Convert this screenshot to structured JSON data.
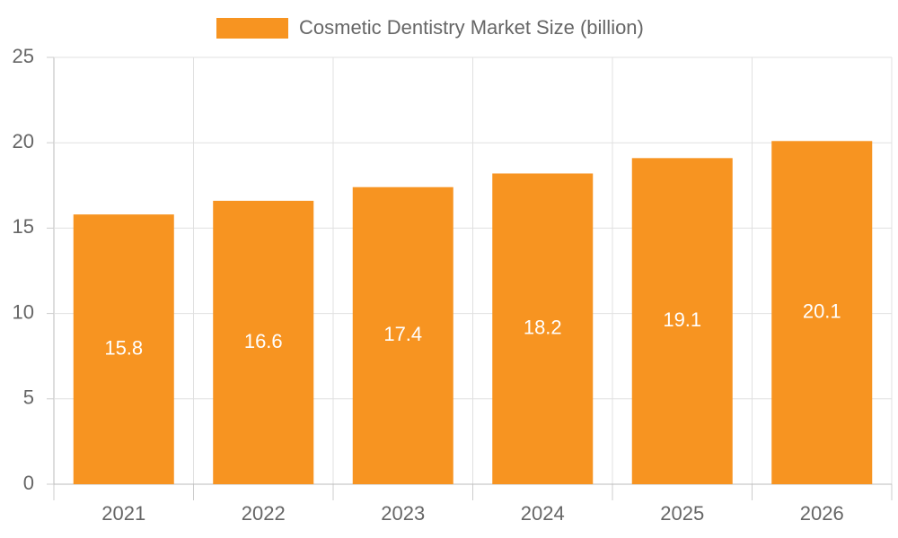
{
  "chart_data": {
    "type": "bar",
    "categories": [
      "2021",
      "2022",
      "2023",
      "2024",
      "2025",
      "2026"
    ],
    "series": [
      {
        "name": "Cosmetic Dentistry Market Size (billion)",
        "color": "#f79421",
        "values": [
          15.8,
          16.6,
          17.4,
          18.2,
          19.1,
          20.1
        ]
      }
    ],
    "ylim": [
      0,
      25
    ],
    "yticks": [
      0,
      5,
      10,
      15,
      20,
      25
    ],
    "grid": true,
    "legend": "top",
    "data_labels": true
  }
}
